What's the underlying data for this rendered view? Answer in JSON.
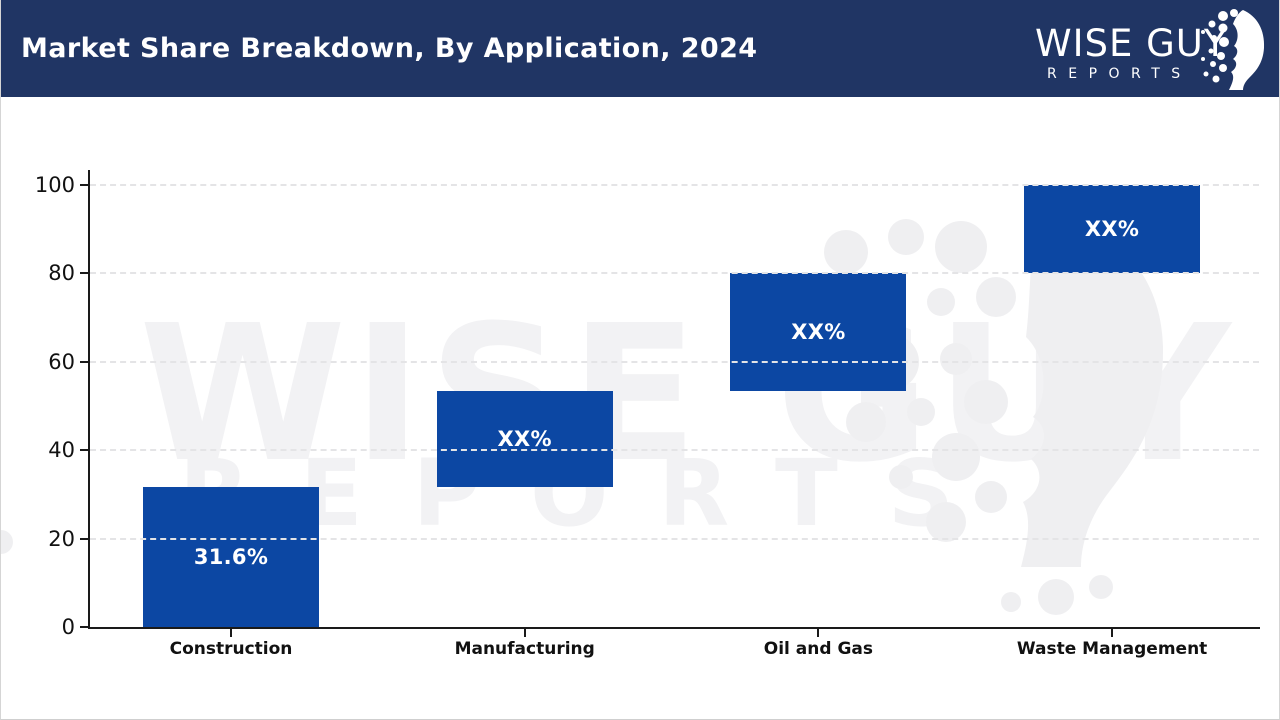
{
  "header": {
    "title": "Market Share Breakdown, By Application, 2024",
    "logo": {
      "line1": "WISE GUY",
      "line2": "REPORTS"
    }
  },
  "watermark": {
    "line1": "WISE GUY",
    "line2": "REPORTS"
  },
  "chart_data": {
    "type": "bar",
    "subtype": "waterfall",
    "title": "Market Share Breakdown, By Application, 2024",
    "categories": [
      "Construction",
      "Manufacturing",
      "Oil and Gas",
      "Waste Management"
    ],
    "segments": [
      {
        "category": "Construction",
        "start": 0,
        "end": 31.6,
        "label": "31.6%"
      },
      {
        "category": "Manufacturing",
        "start": 31.6,
        "end": 53.5,
        "label": "XX%"
      },
      {
        "category": "Oil and Gas",
        "start": 53.5,
        "end": 80,
        "label": "XX%"
      },
      {
        "category": "Waste Management",
        "start": 80,
        "end": 100,
        "label": "XX%"
      }
    ],
    "yticks": [
      0,
      20,
      40,
      60,
      80,
      100
    ],
    "ylim": [
      0,
      104
    ],
    "xlabel": "",
    "ylabel": "",
    "grid": "horizontal-dashed",
    "legend": "none",
    "bar_color": "#0c47a3",
    "bar_label_color": "#ffffff",
    "header_color": "#203564",
    "gridline_color": "#e4e4e6"
  }
}
